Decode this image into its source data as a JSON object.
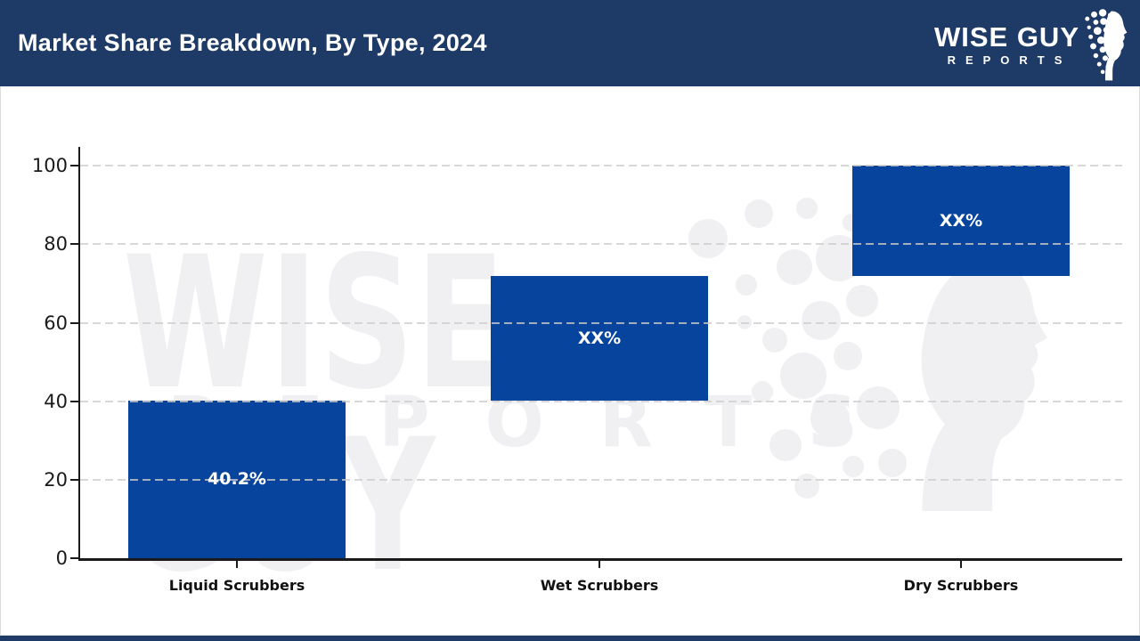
{
  "header": {
    "title": "Market Share Breakdown, By Type, 2024",
    "bg_color": "#1e3a67",
    "logo": {
      "line1": "WISE GUY",
      "line2": "REPORTS"
    }
  },
  "watermark": {
    "line1": "WISE GUY",
    "line2": "REPORTS"
  },
  "chart_data": {
    "type": "bar",
    "variant": "floating-cumulative-bars",
    "title": "Market Share Breakdown, By Type, 2024",
    "categories": [
      "Liquid Scrubbers",
      "Wet Scrubbers",
      "Dry Scrubbers"
    ],
    "segments": [
      {
        "category": "Liquid Scrubbers",
        "start": 0,
        "end": 40.2,
        "value": 40.2,
        "label": "40.2%"
      },
      {
        "category": "Wet Scrubbers",
        "start": 40.2,
        "end": 72,
        "value": 31.8,
        "label": "XX%"
      },
      {
        "category": "Dry Scrubbers",
        "start": 72,
        "end": 100,
        "value": 28,
        "label": "XX%"
      }
    ],
    "ylim": [
      0,
      100
    ],
    "yticks": [
      0,
      20,
      40,
      60,
      80,
      100
    ],
    "xlabel": "",
    "ylabel": "",
    "grid": {
      "horizontal": true,
      "style": "dashed",
      "color": "#d3d3d3",
      "drawn_over_bars": true
    },
    "legend": "none",
    "bar_color": "#07449e",
    "bar_label_color": "#ffffff",
    "axis_color": "#1a1a1a"
  },
  "footer": {
    "bg_color": "#1e3a67"
  }
}
